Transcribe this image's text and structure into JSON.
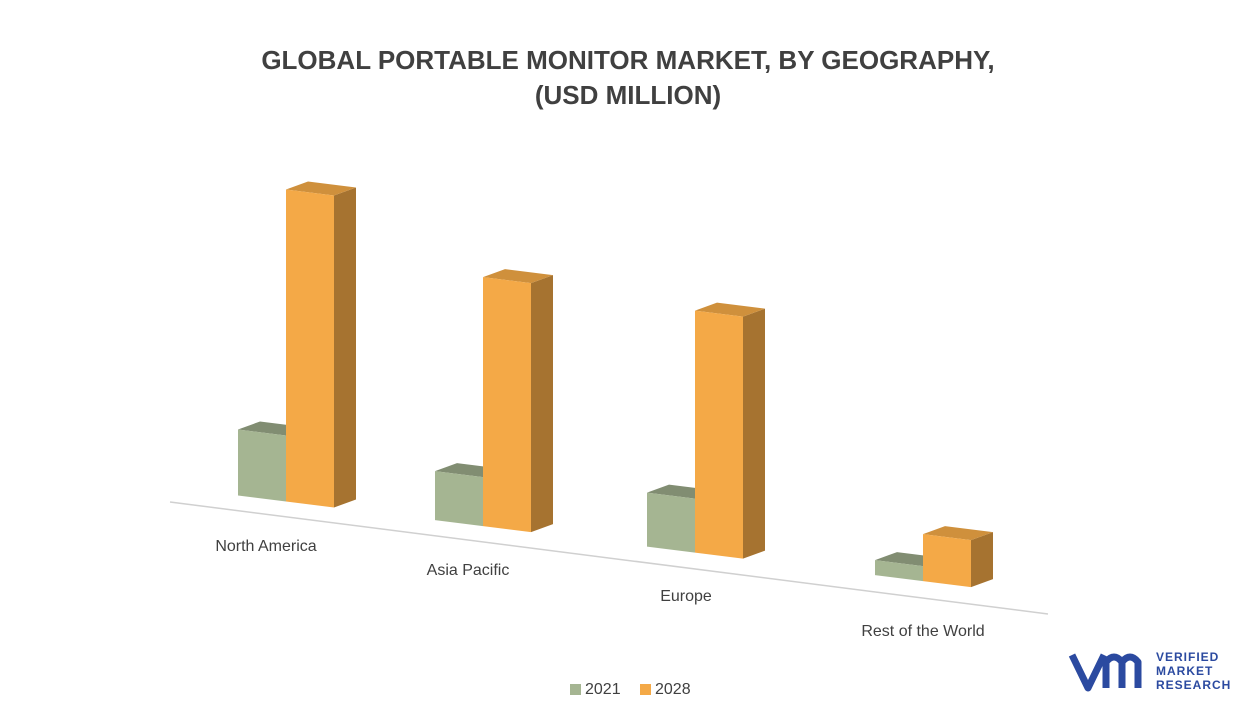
{
  "chart_data": {
    "type": "bar3d",
    "title": [
      "GLOBAL PORTABLE MONITOR MARKET, BY GEOGRAPHY,",
      "(USD MILLION)"
    ],
    "categories": [
      "North America",
      "Asia Pacific",
      "Europe",
      "Rest of the World"
    ],
    "series": [
      {
        "name": "2021",
        "color": "#a5b592",
        "values": [
          66,
          49,
          54,
          15
        ]
      },
      {
        "name": "2028",
        "color": "#f4a947",
        "values": [
          312,
          249,
          242,
          47
        ]
      }
    ]
  },
  "logo": {
    "lines": [
      "VERIFIED",
      "MARKET",
      "RESEARCH"
    ]
  }
}
